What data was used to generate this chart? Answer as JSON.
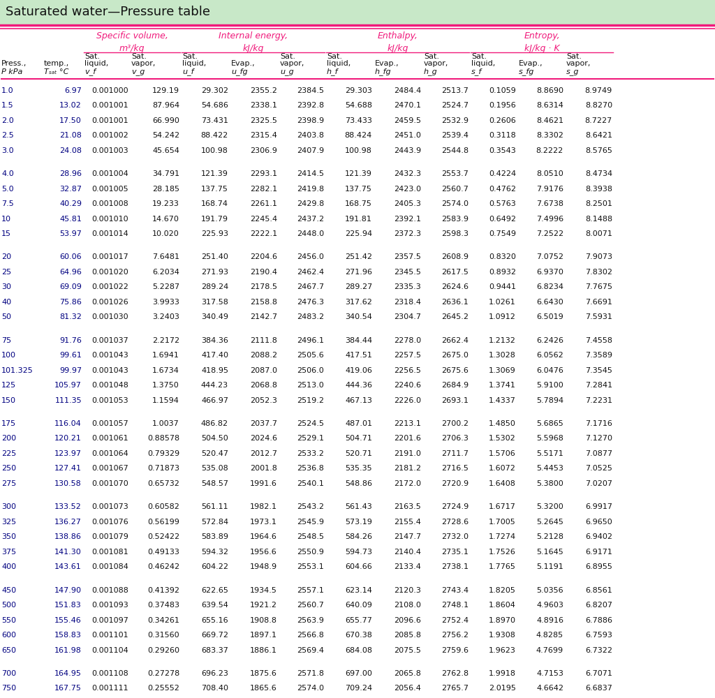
{
  "title": "Saturated water—Pressure table",
  "pink": "#F01A7B",
  "blue": "#000080",
  "text_dark": "#111111",
  "title_bg": "#C8E8C8",
  "row_groups": [
    [
      [
        "1.0",
        "6.97",
        "0.001000",
        "129.19",
        "29.302",
        "2355.2",
        "2384.5",
        "29.303",
        "2484.4",
        "2513.7",
        "0.1059",
        "8.8690",
        "8.9749"
      ],
      [
        "1.5",
        "13.02",
        "0.001001",
        "87.964",
        "54.686",
        "2338.1",
        "2392.8",
        "54.688",
        "2470.1",
        "2524.7",
        "0.1956",
        "8.6314",
        "8.8270"
      ],
      [
        "2.0",
        "17.50",
        "0.001001",
        "66.990",
        "73.431",
        "2325.5",
        "2398.9",
        "73.433",
        "2459.5",
        "2532.9",
        "0.2606",
        "8.4621",
        "8.7227"
      ],
      [
        "2.5",
        "21.08",
        "0.001002",
        "54.242",
        "88.422",
        "2315.4",
        "2403.8",
        "88.424",
        "2451.0",
        "2539.4",
        "0.3118",
        "8.3302",
        "8.6421"
      ],
      [
        "3.0",
        "24.08",
        "0.001003",
        "45.654",
        "100.98",
        "2306.9",
        "2407.9",
        "100.98",
        "2443.9",
        "2544.8",
        "0.3543",
        "8.2222",
        "8.5765"
      ]
    ],
    [
      [
        "4.0",
        "28.96",
        "0.001004",
        "34.791",
        "121.39",
        "2293.1",
        "2414.5",
        "121.39",
        "2432.3",
        "2553.7",
        "0.4224",
        "8.0510",
        "8.4734"
      ],
      [
        "5.0",
        "32.87",
        "0.001005",
        "28.185",
        "137.75",
        "2282.1",
        "2419.8",
        "137.75",
        "2423.0",
        "2560.7",
        "0.4762",
        "7.9176",
        "8.3938"
      ],
      [
        "7.5",
        "40.29",
        "0.001008",
        "19.233",
        "168.74",
        "2261.1",
        "2429.8",
        "168.75",
        "2405.3",
        "2574.0",
        "0.5763",
        "7.6738",
        "8.2501"
      ],
      [
        "10",
        "45.81",
        "0.001010",
        "14.670",
        "191.79",
        "2245.4",
        "2437.2",
        "191.81",
        "2392.1",
        "2583.9",
        "0.6492",
        "7.4996",
        "8.1488"
      ],
      [
        "15",
        "53.97",
        "0.001014",
        "10.020",
        "225.93",
        "2222.1",
        "2448.0",
        "225.94",
        "2372.3",
        "2598.3",
        "0.7549",
        "7.2522",
        "8.0071"
      ]
    ],
    [
      [
        "20",
        "60.06",
        "0.001017",
        "7.6481",
        "251.40",
        "2204.6",
        "2456.0",
        "251.42",
        "2357.5",
        "2608.9",
        "0.8320",
        "7.0752",
        "7.9073"
      ],
      [
        "25",
        "64.96",
        "0.001020",
        "6.2034",
        "271.93",
        "2190.4",
        "2462.4",
        "271.96",
        "2345.5",
        "2617.5",
        "0.8932",
        "6.9370",
        "7.8302"
      ],
      [
        "30",
        "69.09",
        "0.001022",
        "5.2287",
        "289.24",
        "2178.5",
        "2467.7",
        "289.27",
        "2335.3",
        "2624.6",
        "0.9441",
        "6.8234",
        "7.7675"
      ],
      [
        "40",
        "75.86",
        "0.001026",
        "3.9933",
        "317.58",
        "2158.8",
        "2476.3",
        "317.62",
        "2318.4",
        "2636.1",
        "1.0261",
        "6.6430",
        "7.6691"
      ],
      [
        "50",
        "81.32",
        "0.001030",
        "3.2403",
        "340.49",
        "2142.7",
        "2483.2",
        "340.54",
        "2304.7",
        "2645.2",
        "1.0912",
        "6.5019",
        "7.5931"
      ]
    ],
    [
      [
        "75",
        "91.76",
        "0.001037",
        "2.2172",
        "384.36",
        "2111.8",
        "2496.1",
        "384.44",
        "2278.0",
        "2662.4",
        "1.2132",
        "6.2426",
        "7.4558"
      ],
      [
        "100",
        "99.61",
        "0.001043",
        "1.6941",
        "417.40",
        "2088.2",
        "2505.6",
        "417.51",
        "2257.5",
        "2675.0",
        "1.3028",
        "6.0562",
        "7.3589"
      ],
      [
        "101.325",
        "99.97",
        "0.001043",
        "1.6734",
        "418.95",
        "2087.0",
        "2506.0",
        "419.06",
        "2256.5",
        "2675.6",
        "1.3069",
        "6.0476",
        "7.3545"
      ],
      [
        "125",
        "105.97",
        "0.001048",
        "1.3750",
        "444.23",
        "2068.8",
        "2513.0",
        "444.36",
        "2240.6",
        "2684.9",
        "1.3741",
        "5.9100",
        "7.2841"
      ],
      [
        "150",
        "111.35",
        "0.001053",
        "1.1594",
        "466.97",
        "2052.3",
        "2519.2",
        "467.13",
        "2226.0",
        "2693.1",
        "1.4337",
        "5.7894",
        "7.2231"
      ]
    ],
    [
      [
        "175",
        "116.04",
        "0.001057",
        "1.0037",
        "486.82",
        "2037.7",
        "2524.5",
        "487.01",
        "2213.1",
        "2700.2",
        "1.4850",
        "5.6865",
        "7.1716"
      ],
      [
        "200",
        "120.21",
        "0.001061",
        "0.88578",
        "504.50",
        "2024.6",
        "2529.1",
        "504.71",
        "2201.6",
        "2706.3",
        "1.5302",
        "5.5968",
        "7.1270"
      ],
      [
        "225",
        "123.97",
        "0.001064",
        "0.79329",
        "520.47",
        "2012.7",
        "2533.2",
        "520.71",
        "2191.0",
        "2711.7",
        "1.5706",
        "5.5171",
        "7.0877"
      ],
      [
        "250",
        "127.41",
        "0.001067",
        "0.71873",
        "535.08",
        "2001.8",
        "2536.8",
        "535.35",
        "2181.2",
        "2716.5",
        "1.6072",
        "5.4453",
        "7.0525"
      ],
      [
        "275",
        "130.58",
        "0.001070",
        "0.65732",
        "548.57",
        "1991.6",
        "2540.1",
        "548.86",
        "2172.0",
        "2720.9",
        "1.6408",
        "5.3800",
        "7.0207"
      ]
    ],
    [
      [
        "300",
        "133.52",
        "0.001073",
        "0.60582",
        "561.11",
        "1982.1",
        "2543.2",
        "561.43",
        "2163.5",
        "2724.9",
        "1.6717",
        "5.3200",
        "6.9917"
      ],
      [
        "325",
        "136.27",
        "0.001076",
        "0.56199",
        "572.84",
        "1973.1",
        "2545.9",
        "573.19",
        "2155.4",
        "2728.6",
        "1.7005",
        "5.2645",
        "6.9650"
      ],
      [
        "350",
        "138.86",
        "0.001079",
        "0.52422",
        "583.89",
        "1964.6",
        "2548.5",
        "584.26",
        "2147.7",
        "2732.0",
        "1.7274",
        "5.2128",
        "6.9402"
      ],
      [
        "375",
        "141.30",
        "0.001081",
        "0.49133",
        "594.32",
        "1956.6",
        "2550.9",
        "594.73",
        "2140.4",
        "2735.1",
        "1.7526",
        "5.1645",
        "6.9171"
      ],
      [
        "400",
        "143.61",
        "0.001084",
        "0.46242",
        "604.22",
        "1948.9",
        "2553.1",
        "604.66",
        "2133.4",
        "2738.1",
        "1.7765",
        "5.1191",
        "6.8955"
      ]
    ],
    [
      [
        "450",
        "147.90",
        "0.001088",
        "0.41392",
        "622.65",
        "1934.5",
        "2557.1",
        "623.14",
        "2120.3",
        "2743.4",
        "1.8205",
        "5.0356",
        "6.8561"
      ],
      [
        "500",
        "151.83",
        "0.001093",
        "0.37483",
        "639.54",
        "1921.2",
        "2560.7",
        "640.09",
        "2108.0",
        "2748.1",
        "1.8604",
        "4.9603",
        "6.8207"
      ],
      [
        "550",
        "155.46",
        "0.001097",
        "0.34261",
        "655.16",
        "1908.8",
        "2563.9",
        "655.77",
        "2096.6",
        "2752.4",
        "1.8970",
        "4.8916",
        "6.7886"
      ],
      [
        "600",
        "158.83",
        "0.001101",
        "0.31560",
        "669.72",
        "1897.1",
        "2566.8",
        "670.38",
        "2085.8",
        "2756.2",
        "1.9308",
        "4.8285",
        "6.7593"
      ],
      [
        "650",
        "161.98",
        "0.001104",
        "0.29260",
        "683.37",
        "1886.1",
        "2569.4",
        "684.08",
        "2075.5",
        "2759.6",
        "1.9623",
        "4.7699",
        "6.7322"
      ]
    ],
    [
      [
        "700",
        "164.95",
        "0.001108",
        "0.27278",
        "696.23",
        "1875.6",
        "2571.8",
        "697.00",
        "2065.8",
        "2762.8",
        "1.9918",
        "4.7153",
        "6.7071"
      ],
      [
        "750",
        "167.75",
        "0.001111",
        "0.25552",
        "708.40",
        "1865.6",
        "2574.0",
        "709.24",
        "2056.4",
        "2765.7",
        "2.0195",
        "4.6642",
        "6.6837"
      ]
    ]
  ]
}
